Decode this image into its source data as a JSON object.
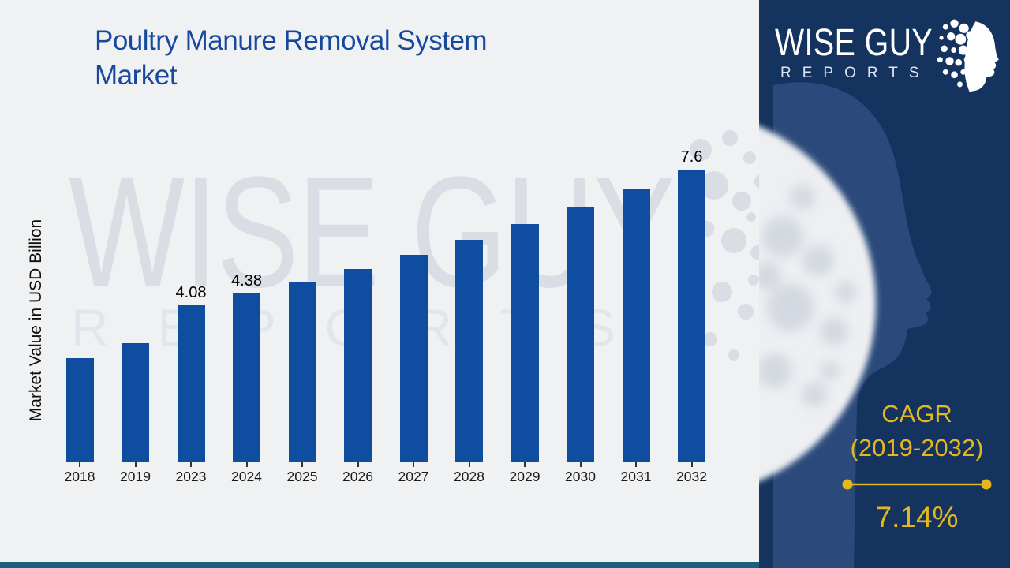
{
  "title": "Poultry Manure Removal System Market",
  "watermark": {
    "line1": "WISE GUY",
    "line2": "REPORTS"
  },
  "logo": {
    "line1": "WISE GUY",
    "line2": "REPORTS"
  },
  "cagr": {
    "label": "CAGR",
    "range": "(2019-2032)",
    "value": "7.14%"
  },
  "colors": {
    "title_blue": "#16499e",
    "bar_blue": "#0f4da0",
    "panel_navy": "#15335f",
    "panel_face_blue": "#2b4a7b",
    "gold": "#e5b71f",
    "teal_strip": "#1a5f7e",
    "background": "#f0f1f2",
    "watermark_gray": "#d9dde4"
  },
  "chart_data": {
    "type": "bar",
    "title": "Poultry Manure Removal System Market",
    "xlabel": "",
    "ylabel": "Market Value in USD Billion",
    "categories": [
      "2018",
      "2019",
      "2023",
      "2024",
      "2025",
      "2026",
      "2027",
      "2028",
      "2029",
      "2030",
      "2031",
      "2032"
    ],
    "values": [
      2.71,
      3.1,
      4.08,
      4.38,
      4.69,
      5.02,
      5.38,
      5.77,
      6.18,
      6.62,
      7.09,
      7.6
    ],
    "point_labels": [
      null,
      null,
      "4.08",
      "4.38",
      null,
      null,
      null,
      null,
      null,
      null,
      null,
      "7.6"
    ],
    "ylim": [
      0,
      8
    ],
    "grid": false,
    "legend": false,
    "bar_color": "#0f4da0"
  }
}
